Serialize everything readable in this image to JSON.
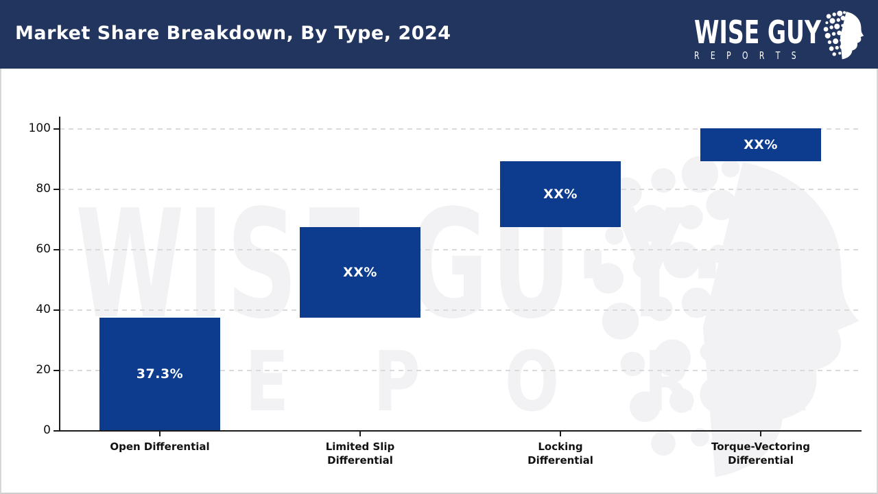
{
  "header": {
    "title": "Market Share Breakdown, By Type, 2024",
    "logo": {
      "line1": "WISE GUY",
      "line2": "R E P O R T S"
    }
  },
  "watermark": {
    "line1": "WISE GU·Y·",
    "line2": "R E P O R T S"
  },
  "colors": {
    "header_bg": "#22355f",
    "bar_blue": "#0d3c8f",
    "axis": "#1a1a1a",
    "grid": "#dadada",
    "watermark_gray": "#f2f2f4",
    "label_white": "#ffffff"
  },
  "chart_data": {
    "type": "bar",
    "subtype": "waterfall",
    "title": "Market Share Breakdown, By Type, 2024",
    "xlabel": "",
    "ylabel": "",
    "ylim": [
      0,
      100
    ],
    "y_ticks": [
      0,
      20,
      40,
      60,
      80,
      100
    ],
    "grid": "horizontal dashed",
    "legend": "none",
    "categories": [
      "Open Differential",
      "Limited Slip Differential",
      "Locking Differential",
      "Torque-Vectoring Differential"
    ],
    "segments": [
      {
        "label_lines": [
          "Open Differential"
        ],
        "start": 0,
        "end": 37.3,
        "value_label": "37.3%"
      },
      {
        "label_lines": [
          "Limited Slip",
          "Differential"
        ],
        "start": 37.3,
        "end": 67.3,
        "value_label": "XX%"
      },
      {
        "label_lines": [
          "Locking",
          "Differential"
        ],
        "start": 67.3,
        "end": 89.2,
        "value_label": "XX%"
      },
      {
        "label_lines": [
          "Torque-Vectoring",
          "Differential"
        ],
        "start": 89.2,
        "end": 100,
        "value_label": "XX%"
      }
    ]
  }
}
